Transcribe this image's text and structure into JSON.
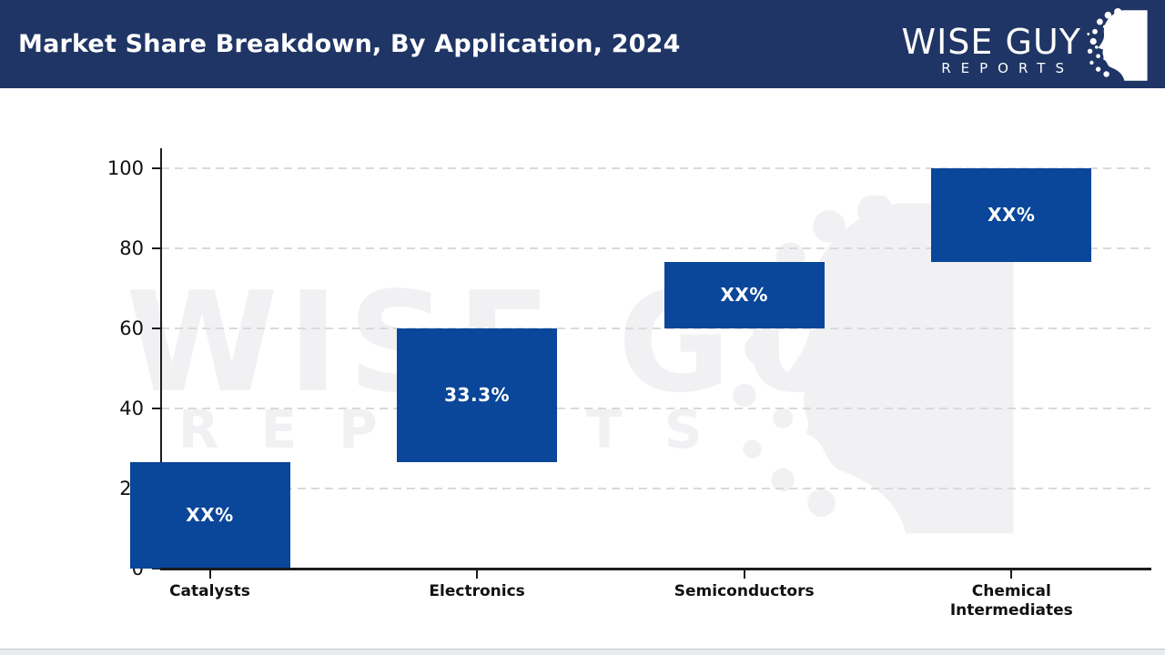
{
  "header": {
    "title": "Market Share Breakdown, By Application, 2024",
    "bg_color": "#1f3565",
    "logo": {
      "line1": "WISE GUY",
      "line2": "REPORTS"
    }
  },
  "watermark": {
    "line1": "WISE GUY",
    "line2": "REPORTS"
  },
  "chart_data": {
    "type": "bar",
    "subtype": "floating-waterfall",
    "title": "Market Share Breakdown, By Application, 2024",
    "categories": [
      "Catalysts",
      "Electronics",
      "Semiconductors",
      "Chemical Intermediates"
    ],
    "bars": [
      {
        "category": "Catalysts",
        "start": 0,
        "end": 26.7,
        "value_label": "XX%"
      },
      {
        "category": "Electronics",
        "start": 26.7,
        "end": 60,
        "value_label": "33.3%"
      },
      {
        "category": "Semiconductors",
        "start": 60,
        "end": 76.7,
        "value_label": "XX%"
      },
      {
        "category": "Chemical Intermediates",
        "start": 76.7,
        "end": 100,
        "value_label": "XX%"
      }
    ],
    "y_ticks": [
      0,
      20,
      40,
      60,
      80,
      100
    ],
    "ylim": [
      0,
      105
    ],
    "xlabel": "",
    "ylabel": "",
    "legend": "none",
    "grid": "horizontal-dashed",
    "bar_color": "#0a4699",
    "value_label_color": "#ffffff",
    "axis_color": "#1c1c1c",
    "gridline_color": "#dadada"
  }
}
